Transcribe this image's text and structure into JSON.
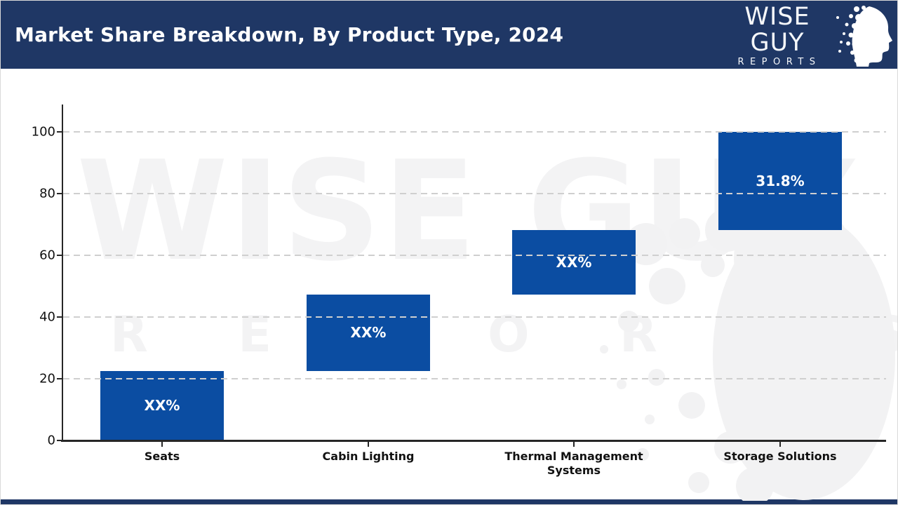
{
  "header": {
    "title": "Market Share Breakdown, By Product Type, 2024",
    "bg_color": "#1f3765"
  },
  "logo": {
    "name": "WISE GUY",
    "tagline": "REPORTS"
  },
  "watermark": {
    "line1": "WISE GUY",
    "line2": "REPORTS"
  },
  "chart_data": {
    "type": "bar",
    "subtype": "waterfall",
    "title": "Market Share Breakdown, By Product Type, 2024",
    "xlabel": "",
    "ylabel": "",
    "ylim": [
      0,
      108
    ],
    "grid": "dashed-horizontal",
    "bar_color": "#0b4da2",
    "yticks": [
      0,
      20,
      40,
      60,
      80,
      100
    ],
    "categories": [
      "Seats",
      "Cabin Lighting",
      "Thermal Management\nSystems",
      "Storage Solutions"
    ],
    "segments": [
      {
        "category": "Seats",
        "start": 0,
        "end": 22.6,
        "label": "XX%"
      },
      {
        "category": "Cabin Lighting",
        "start": 22.6,
        "end": 47.2,
        "label": "XX%"
      },
      {
        "category": "Thermal Management\nSystems",
        "start": 47.2,
        "end": 68.2,
        "label": "XX%"
      },
      {
        "category": "Storage Solutions",
        "start": 68.2,
        "end": 100,
        "label": "31.8%"
      }
    ]
  }
}
